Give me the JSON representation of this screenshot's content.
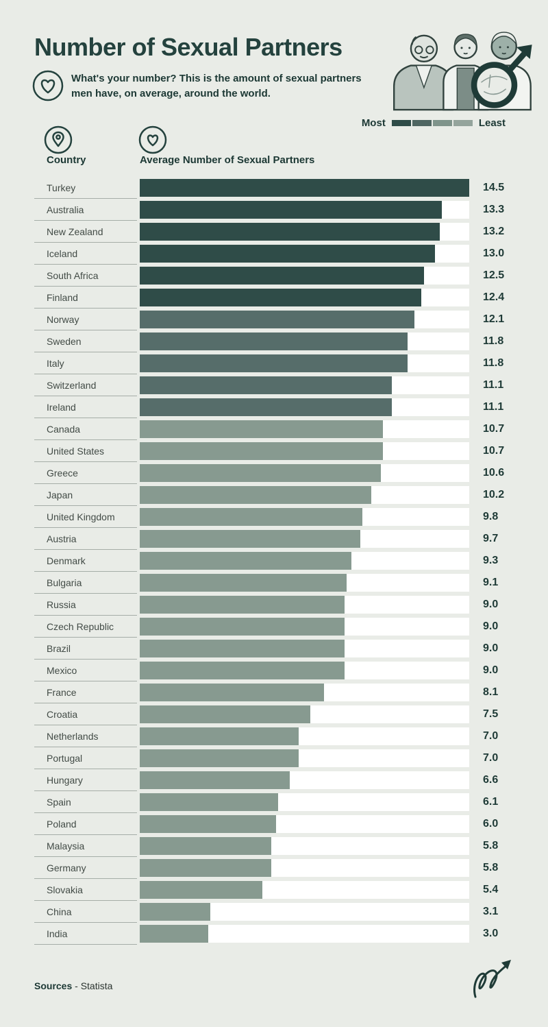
{
  "page": {
    "title": "Number of Sexual Partners",
    "subtitle_line1": "What's your number? This is the amount of sexual partners",
    "subtitle_line2": "men have, on average, around the world."
  },
  "legend": {
    "most_label": "Most",
    "least_label": "Least",
    "colors": [
      "#2f4c48",
      "#4f6662",
      "#7f948b",
      "#94a49c"
    ]
  },
  "columns": {
    "country_label": "Country",
    "value_label": "Average Number of Sexual Partners"
  },
  "footer": {
    "sources_bold": "Sources",
    "sources_text": " - Statista"
  },
  "icons": {
    "subtitle": "heart-circle-icon",
    "country_column": "map-pin-circle-icon",
    "value_column": "heart-circle-icon",
    "header_art": "three-men-with-male-symbol-illustration",
    "logo": "signature-arrow-logo"
  },
  "chart_data": {
    "type": "bar",
    "orientation": "horizontal",
    "title": "Number of Sexual Partners",
    "value_axis_label": "Average Number of Sexual Partners",
    "max_value": 14.5,
    "value_range": [
      0,
      14.5
    ],
    "grid": false,
    "legend_position": "top-right",
    "categories": [
      "Turkey",
      "Australia",
      "New Zealand",
      "Iceland",
      "South Africa",
      "Finland",
      "Norway",
      "Sweden",
      "Italy",
      "Switzerland",
      "Ireland",
      "Canada",
      "United States",
      "Greece",
      "Japan",
      "United Kingdom",
      "Austria",
      "Denmark",
      "Bulgaria",
      "Russia",
      "Czech Republic",
      "Brazil",
      "Mexico",
      "France",
      "Croatia",
      "Netherlands",
      "Portugal",
      "Hungary",
      "Spain",
      "Poland",
      "Malaysia",
      "Germany",
      "Slovakia",
      "China",
      "India"
    ],
    "values": [
      14.5,
      13.3,
      13.2,
      13.0,
      12.5,
      12.4,
      12.1,
      11.8,
      11.8,
      11.1,
      11.1,
      10.7,
      10.7,
      10.6,
      10.2,
      9.8,
      9.7,
      9.3,
      9.1,
      9.0,
      9.0,
      9.0,
      9.0,
      8.1,
      7.5,
      7.0,
      7.0,
      6.6,
      6.1,
      6.0,
      5.8,
      5.8,
      5.4,
      3.1,
      3.0
    ],
    "color_scale": {
      "dark": "#2f4c48",
      "dark_min": 12.4,
      "medium": "#566d6a",
      "medium_min": 11.1,
      "light": "#879a90",
      "track": "#ffffff"
    }
  }
}
